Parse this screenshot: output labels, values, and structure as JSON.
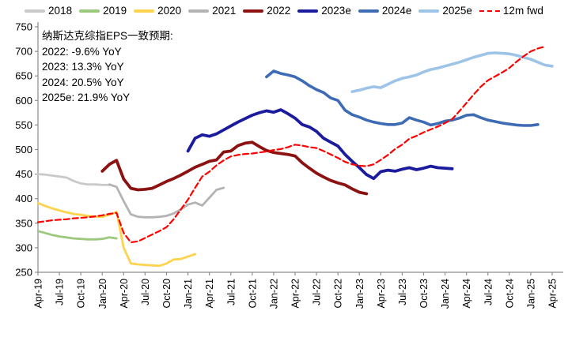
{
  "annotation": {
    "title": "纳斯达克综指EPS一致预期:",
    "lines": [
      "2022: -9.6% YoY",
      "2023:  13.3% YoY",
      "2024:  20.5% YoY",
      "2025e: 21.9% YoY"
    ]
  },
  "chart_data": {
    "type": "line",
    "title": "纳斯达克综指EPS一致预期",
    "x_axis": {
      "unit": "months since Apr-2019",
      "tick_every_months": 3,
      "tick_labels": [
        "Apr-19",
        "Jul-19",
        "Oct-19",
        "Jan-20",
        "Apr-20",
        "Jul-20",
        "Oct-20",
        "Jan-21",
        "Apr-21",
        "Jul-21",
        "Oct-21",
        "Jan-22",
        "Apr-22",
        "Jul-22",
        "Oct-22",
        "Jan-23",
        "Apr-23",
        "Jul-23",
        "Oct-23",
        "Jan-24",
        "Apr-24",
        "Jul-24",
        "Oct-24",
        "Jan-25",
        "Apr-25"
      ]
    },
    "y_axis": {
      "min": 250,
      "max": 750,
      "step": 50,
      "ticks": [
        250,
        300,
        350,
        400,
        450,
        500,
        550,
        600,
        650,
        700,
        750
      ]
    },
    "grid": false,
    "legend_position": "top",
    "series": [
      {
        "name": "2018",
        "color": "#c9c9c9",
        "width": 2.8,
        "dash": null,
        "start_month": 0,
        "values": [
          450,
          449,
          447,
          445,
          443,
          436,
          431,
          429,
          429,
          428,
          428
        ]
      },
      {
        "name": "2019",
        "color": "#9cc87d",
        "width": 2.8,
        "dash": null,
        "start_month": 0,
        "values": [
          334,
          330,
          326,
          323,
          321,
          319,
          318,
          317,
          317,
          318,
          321,
          319
        ]
      },
      {
        "name": "2020",
        "color": "#ffd34d",
        "width": 2.8,
        "dash": null,
        "start_month": 0,
        "values": [
          391,
          385,
          380,
          376,
          372,
          369,
          367,
          365,
          363,
          363,
          367,
          373,
          300,
          268,
          266,
          265,
          264,
          263,
          268,
          276,
          277,
          282,
          287
        ]
      },
      {
        "name": "2021",
        "color": "#b3b3b3",
        "width": 2.8,
        "dash": null,
        "start_month": 10,
        "values": [
          429,
          424,
          395,
          368,
          363,
          362,
          362,
          363,
          365,
          370,
          378,
          388,
          392,
          386,
          402,
          418,
          422
        ]
      },
      {
        "name": "2022",
        "color": "#8c1212",
        "width": 3.8,
        "dash": null,
        "start_month": 9,
        "values": [
          456,
          470,
          478,
          440,
          421,
          418,
          419,
          421,
          428,
          435,
          441,
          448,
          456,
          464,
          470,
          476,
          479,
          495,
          497,
          508,
          513,
          515,
          506,
          498,
          494,
          492,
          490,
          487,
          473,
          462,
          452,
          444,
          437,
          432,
          428,
          420,
          413,
          410
        ]
      },
      {
        "name": "2023e",
        "color": "#1b1b9e",
        "width": 3.8,
        "dash": null,
        "start_month": 21,
        "values": [
          497,
          523,
          530,
          527,
          532,
          540,
          548,
          556,
          563,
          570,
          575,
          579,
          576,
          581,
          573,
          564,
          551,
          546,
          537,
          523,
          515,
          507,
          490,
          476,
          463,
          449,
          441,
          455,
          458,
          456,
          460,
          463,
          459,
          462,
          466,
          463,
          462,
          461
        ]
      },
      {
        "name": "2024e",
        "color": "#3d6cb5",
        "width": 3.6,
        "dash": null,
        "start_month": 32,
        "values": [
          648,
          660,
          655,
          652,
          648,
          640,
          630,
          622,
          616,
          605,
          600,
          580,
          571,
          566,
          560,
          556,
          553,
          551,
          551,
          554,
          565,
          560,
          556,
          550,
          553,
          558,
          560,
          564,
          570,
          571,
          565,
          560,
          557,
          554,
          552,
          550,
          549,
          549,
          551
        ]
      },
      {
        "name": "2025e",
        "color": "#9dc3e6",
        "width": 3.6,
        "dash": null,
        "start_month": 44,
        "values": [
          618,
          621,
          625,
          628,
          626,
          633,
          640,
          645,
          648,
          652,
          658,
          663,
          666,
          670,
          674,
          678,
          683,
          688,
          692,
          696,
          697,
          696,
          695,
          692,
          688,
          684,
          678,
          672,
          670
        ]
      },
      {
        "name": "12m fwd",
        "color": "#ff0000",
        "width": 2.2,
        "dash": "7,4",
        "start_month": 0,
        "values": [
          352,
          354,
          356,
          357,
          358,
          360,
          361,
          362,
          364,
          366,
          369,
          371,
          330,
          311,
          313,
          320,
          327,
          334,
          342,
          358,
          378,
          398,
          422,
          445,
          455,
          468,
          478,
          486,
          489,
          491,
          492,
          494,
          496,
          499,
          501,
          505,
          510,
          508,
          505,
          503,
          497,
          490,
          483,
          475,
          470,
          467,
          466,
          470,
          479,
          489,
          501,
          510,
          522,
          528,
          535,
          541,
          547,
          554,
          562,
          578,
          595,
          612,
          628,
          641,
          649,
          657,
          666,
          679,
          690,
          700,
          706,
          710
        ]
      }
    ]
  }
}
